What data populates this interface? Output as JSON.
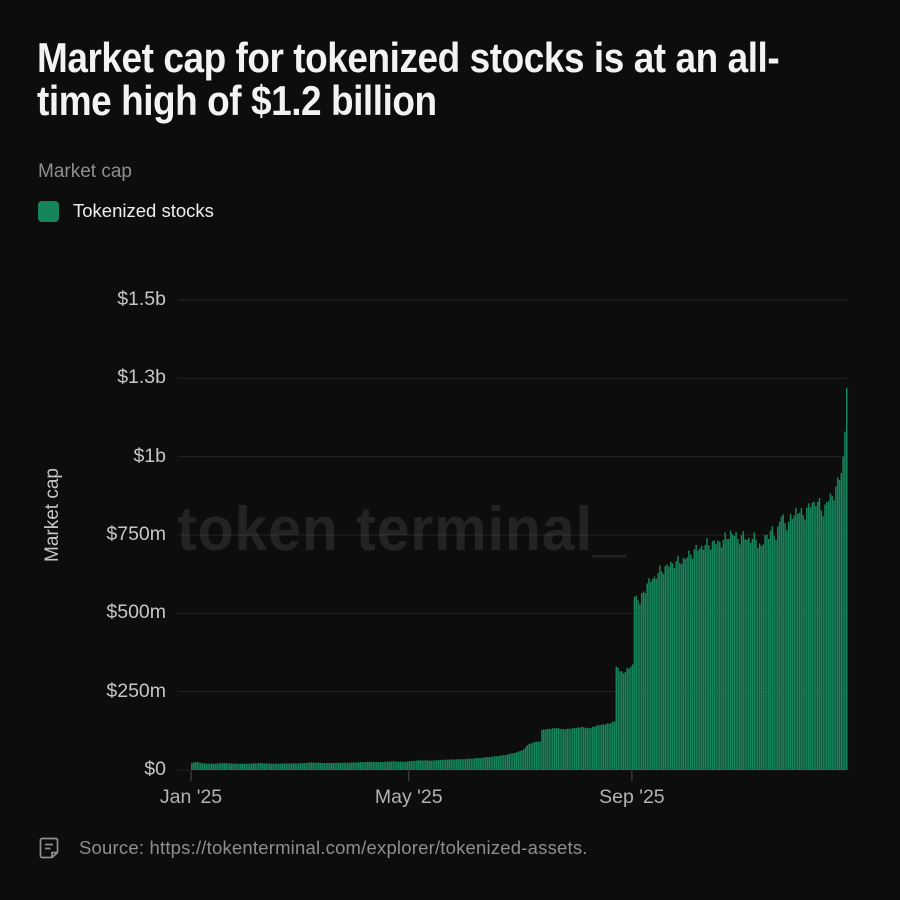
{
  "title": {
    "lines": [
      "Market cap for tokenized stocks is at an all-",
      "time high of $1.2 billion"
    ]
  },
  "subtitle": "Market cap",
  "legend": {
    "label": "Tokenized stocks",
    "color": "#17855c"
  },
  "watermark": "token terminal_",
  "source": {
    "icon": "document-icon",
    "text": "Source: https://tokenterminal.com/explorer/tokenized-assets."
  },
  "colors": {
    "background": "#0d0d0d",
    "series_green": "#17855c",
    "gridline": "#232323",
    "tick_mark": "#4d4d4d",
    "title_text": "#f3f3f3",
    "muted_text": "#8e8e8e",
    "axis_text": "#c6c6c6"
  },
  "chart_data": {
    "type": "bar",
    "title": "Market cap",
    "series": [
      {
        "name": "Tokenized stocks",
        "color": "#17855c"
      }
    ],
    "ylabel": "Market cap",
    "xlabel": "",
    "values_unit": "USD millions",
    "x_unit": "days since Jan 1 2025",
    "days_total": 362,
    "x_ticks": [
      {
        "label": "Jan '25",
        "day": 0
      },
      {
        "label": "May '25",
        "day": 120
      },
      {
        "label": "Sep '25",
        "day": 243
      }
    ],
    "y_ticks": [
      {
        "label": "$0",
        "value_musd": 0
      },
      {
        "label": "$250m",
        "value_musd": 250
      },
      {
        "label": "$500m",
        "value_musd": 500
      },
      {
        "label": "$750m",
        "value_musd": 750
      },
      {
        "label": "$1b",
        "value_musd": 1000
      },
      {
        "label": "$1.3b",
        "value_musd": 1250
      },
      {
        "label": "$1.5b",
        "value_musd": 1500
      }
    ],
    "ylim_musd": [
      0,
      1566
    ],
    "grid": true,
    "legend_position": "top-left",
    "latest_value_musd": 1220,
    "anchors_day_value_musd": [
      [
        0,
        22
      ],
      [
        3,
        26
      ],
      [
        6,
        21
      ],
      [
        12,
        20
      ],
      [
        18,
        22
      ],
      [
        24,
        20
      ],
      [
        31,
        20
      ],
      [
        38,
        22
      ],
      [
        45,
        20
      ],
      [
        52,
        21
      ],
      [
        59,
        21
      ],
      [
        66,
        24
      ],
      [
        74,
        22
      ],
      [
        82,
        23
      ],
      [
        90,
        24
      ],
      [
        97,
        26
      ],
      [
        104,
        25
      ],
      [
        111,
        28
      ],
      [
        116,
        26
      ],
      [
        120,
        28
      ],
      [
        126,
        31
      ],
      [
        132,
        30
      ],
      [
        140,
        33
      ],
      [
        146,
        34
      ],
      [
        151,
        35
      ],
      [
        158,
        38
      ],
      [
        166,
        43
      ],
      [
        172,
        47
      ],
      [
        176,
        52
      ],
      [
        180,
        58
      ],
      [
        183,
        66
      ],
      [
        186,
        84
      ],
      [
        190,
        90
      ],
      [
        192,
        92
      ],
      [
        193,
        128
      ],
      [
        197,
        131
      ],
      [
        201,
        134
      ],
      [
        205,
        130
      ],
      [
        210,
        133
      ],
      [
        215,
        137
      ],
      [
        219,
        133
      ],
      [
        224,
        143
      ],
      [
        228,
        146
      ],
      [
        231,
        150
      ],
      [
        233,
        156
      ],
      [
        234,
        330
      ],
      [
        236,
        318
      ],
      [
        238,
        308
      ],
      [
        240,
        322
      ],
      [
        243,
        334
      ],
      [
        244,
        560
      ],
      [
        246,
        545
      ],
      [
        247,
        530
      ],
      [
        249,
        572
      ],
      [
        252,
        600
      ],
      [
        255,
        615
      ],
      [
        258,
        634
      ],
      [
        262,
        650
      ],
      [
        266,
        662
      ],
      [
        270,
        668
      ],
      [
        273,
        680
      ],
      [
        276,
        695
      ],
      [
        280,
        710
      ],
      [
        285,
        722
      ],
      [
        289,
        725
      ],
      [
        293,
        730
      ],
      [
        297,
        758
      ],
      [
        301,
        740
      ],
      [
        304,
        745
      ],
      [
        308,
        735
      ],
      [
        311,
        740
      ],
      [
        314,
        705
      ],
      [
        316,
        745
      ],
      [
        319,
        760
      ],
      [
        322,
        750
      ],
      [
        325,
        812
      ],
      [
        327,
        790
      ],
      [
        329,
        785
      ],
      [
        333,
        832
      ],
      [
        336,
        815
      ],
      [
        338,
        822
      ],
      [
        341,
        845
      ],
      [
        344,
        860
      ],
      [
        348,
        828
      ],
      [
        351,
        862
      ],
      [
        354,
        885
      ],
      [
        356,
        910
      ],
      [
        358,
        960
      ],
      [
        359,
        1000
      ],
      [
        360,
        1080
      ],
      [
        361,
        1220
      ]
    ]
  }
}
